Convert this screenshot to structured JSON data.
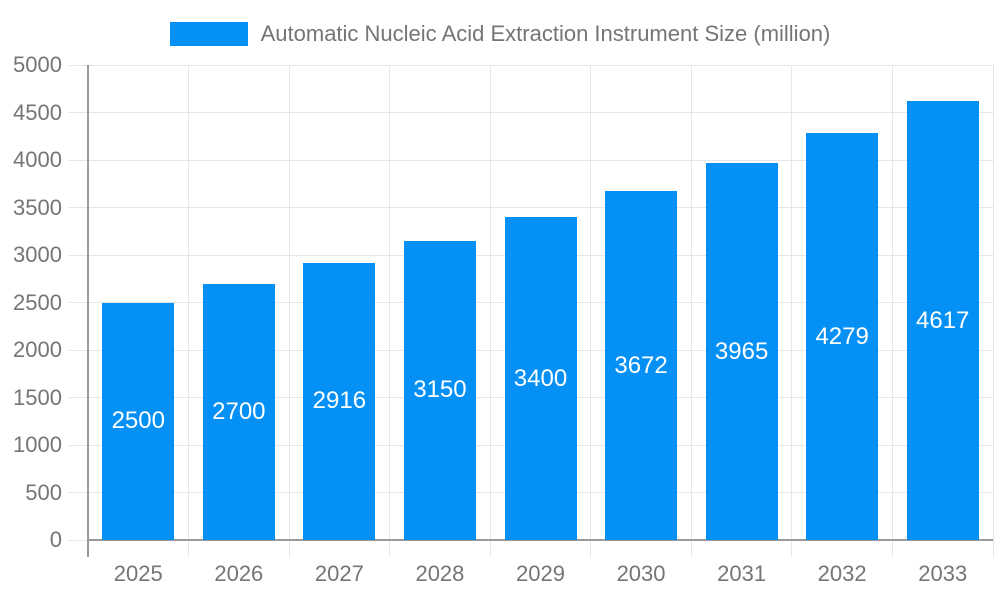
{
  "chart_data": {
    "type": "bar",
    "title": "Automatic Nucleic Acid Extraction Instrument Size (million)",
    "categories": [
      "2025",
      "2026",
      "2027",
      "2028",
      "2029",
      "2030",
      "2031",
      "2032",
      "2033"
    ],
    "values": [
      2500,
      2700,
      2916,
      3150,
      3400,
      3672,
      3965,
      4279,
      4617
    ],
    "bar_value_labels": [
      "2500",
      "2700",
      "2916",
      "3150",
      "3400",
      "3672",
      "3965",
      "4279",
      "4617"
    ],
    "xlabel": "",
    "ylabel": "",
    "ylim": [
      0,
      5000
    ],
    "y_tick_step": 500,
    "y_tick_labels": [
      "0",
      "500",
      "1000",
      "1500",
      "2000",
      "2500",
      "3000",
      "3500",
      "4000",
      "4500",
      "5000"
    ],
    "grid": true,
    "legend_position": "top-center",
    "colors": {
      "bar": "#0590F5",
      "bar_value_text": "#ffffff",
      "axis_text": "#757575",
      "legend_text": "#757575",
      "axis_line": "#999999",
      "gridline": "#e6e6e6",
      "background": "#ffffff"
    }
  }
}
